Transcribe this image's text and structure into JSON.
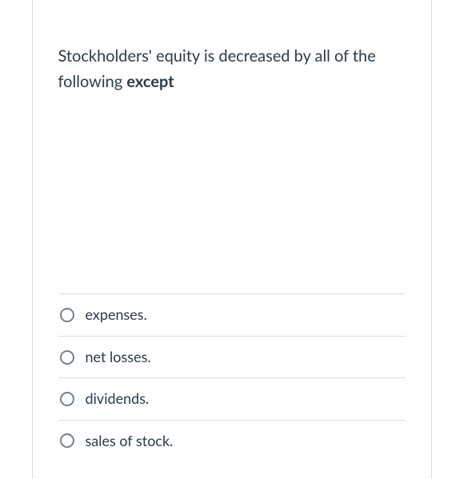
{
  "question": {
    "prefix": "Stockholders' equity is decreased by all of the following ",
    "emphasis": "except",
    "text_color": "#2d3b45",
    "font_size_pt": 20
  },
  "options": [
    {
      "label": "expenses.",
      "selected": false
    },
    {
      "label": "net losses.",
      "selected": false
    },
    {
      "label": "dividends.",
      "selected": false
    },
    {
      "label": "sales of stock.",
      "selected": false
    }
  ],
  "styling": {
    "card_border_color": "#d9d9d9",
    "option_divider_color": "#dcdcdc",
    "radio_border_color": "#73818c",
    "background_color": "#ffffff",
    "option_font_size_pt": 18
  }
}
